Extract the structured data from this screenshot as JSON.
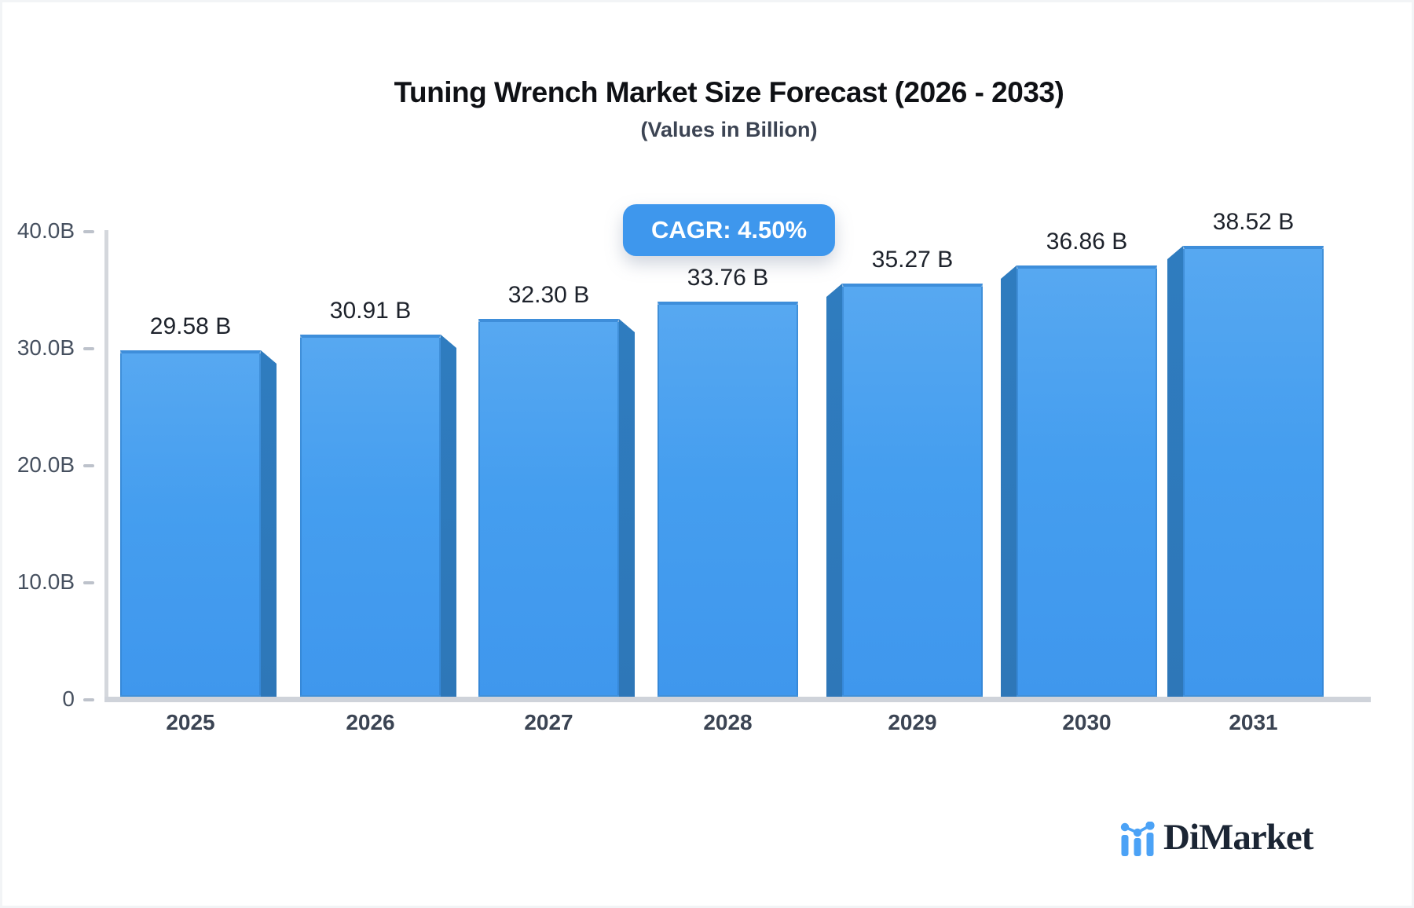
{
  "header": {
    "title": "Tuning Wrench Market Size Forecast (2026 - 2033)",
    "subtitle": "(Values in Billion)"
  },
  "badge": {
    "label": "CAGR: 4.50%"
  },
  "brand": {
    "name": "DiMarket",
    "icon": "mini-bar-chart-logo-icon"
  },
  "colors": {
    "bar_face": "#459EEF",
    "bar_face_light": "#57A8F1",
    "bar_side": "#2E79BB",
    "bar_top_edge": "#3E8EDA",
    "badge_bg": "#3E97ED",
    "badge_text": "#FFFFFF",
    "axis_line": "#D4D7DC",
    "baseline": "#CFD3DA",
    "tick_dash": "#BDC2CB",
    "y_label_text": "#46505F",
    "x_label_text": "#3B4453",
    "value_label_text": "#1D222B",
    "title_text": "#0F1115",
    "subtitle_text": "#3C4453",
    "logo_blue": "#4BA2F6",
    "logo_text": "#1B2534"
  },
  "chart_data": {
    "type": "bar",
    "title": "Tuning Wrench Market Size Forecast (2026 - 2033)",
    "subtitle": "(Values in Billion)",
    "categories": [
      "2025",
      "2026",
      "2027",
      "2028",
      "2029",
      "2030",
      "2031"
    ],
    "values": [
      29.58,
      30.91,
      32.3,
      33.76,
      35.27,
      36.86,
      38.52
    ],
    "value_labels": [
      "29.58 B",
      "30.91 B",
      "32.30 B",
      "33.76 B",
      "35.27 B",
      "36.86 B",
      "38.52 B"
    ],
    "xlabel": "",
    "ylabel": "",
    "ylim": [
      0,
      40
    ],
    "y_ticks": [
      {
        "value": 40,
        "label": "40.0B"
      },
      {
        "value": 30,
        "label": "30.0B"
      },
      {
        "value": 20,
        "label": "20.0B"
      },
      {
        "value": 10,
        "label": "10.0B"
      },
      {
        "value": 0,
        "label": "0"
      }
    ],
    "grid": false,
    "legend": false,
    "style": "3d-perspective-bars",
    "annotations": [
      "CAGR: 4.50%"
    ]
  }
}
